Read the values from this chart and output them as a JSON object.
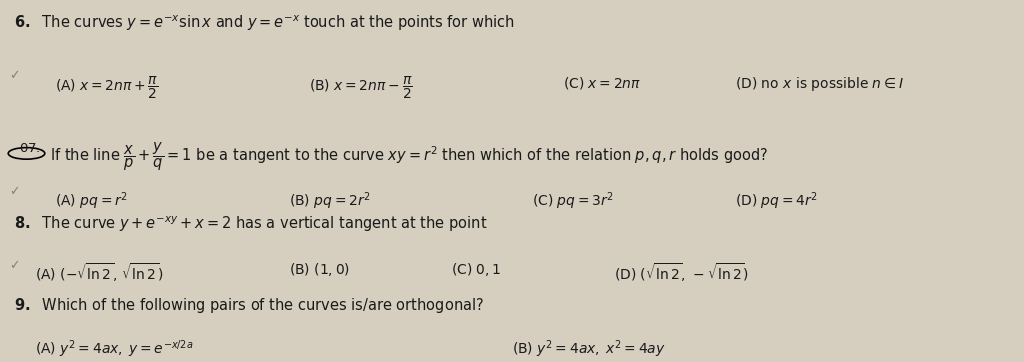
{
  "background_color": "#d6cfc0",
  "text_color": "#1a1a1a",
  "title_q6": "6.  The curves $y=e^{-x}\\sin x$ and $y=e^{-x}$ touch at the points for which",
  "q6_A": "(A) $x = 2n\\pi + \\dfrac{\\pi}{2}$",
  "q6_B": "(B) $x = 2n\\pi - \\dfrac{\\pi}{2}$",
  "q6_C": "(C) $x = 2n\\pi$",
  "q6_D": "(D) no $x$ is possible $n \\in I$",
  "title_q7": "07.  If the line $\\dfrac{x}{p} + \\dfrac{y}{q} = 1$ be a tangent to the curve $xy = r^2$ then which of the relation $p, q, r$ holds good?",
  "q7_A": "(A) $pq = r^2$",
  "q7_B": "(B) $pq = 2r^2$",
  "q7_C": "(C) $pq = 3r^2$",
  "q7_D": "(D) $pq = 4r^2$",
  "title_q8": "8.  The curve $y + e^{-xy} + x = 2$ has a vertical tangent at the point",
  "q8_A": "(A) $(-\\sqrt{\\ln 2},\\, \\sqrt{\\ln 2})$",
  "q8_B": "(B) $(1, 0)$",
  "q8_C": "(C) $0, 1$",
  "q8_D": "(D) $(\\sqrt{\\ln 2},\\, -\\sqrt{\\ln 2})$",
  "title_q9": "9.  Which of the following pairs of the curves is/are orthogonal?",
  "q9_A": "(A) $y^2 = 4ax,\\; y = e^{-x/2a}$",
  "q9_B": "(B) $y^2 = 4ax,\\; x^2 = 4ay$"
}
